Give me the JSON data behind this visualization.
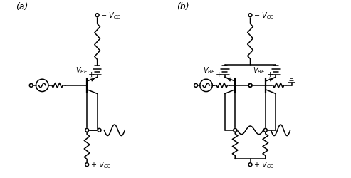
{
  "bg_color": "#ffffff",
  "line_color": "#000000",
  "label_a": "(a)",
  "label_b": "(b)"
}
